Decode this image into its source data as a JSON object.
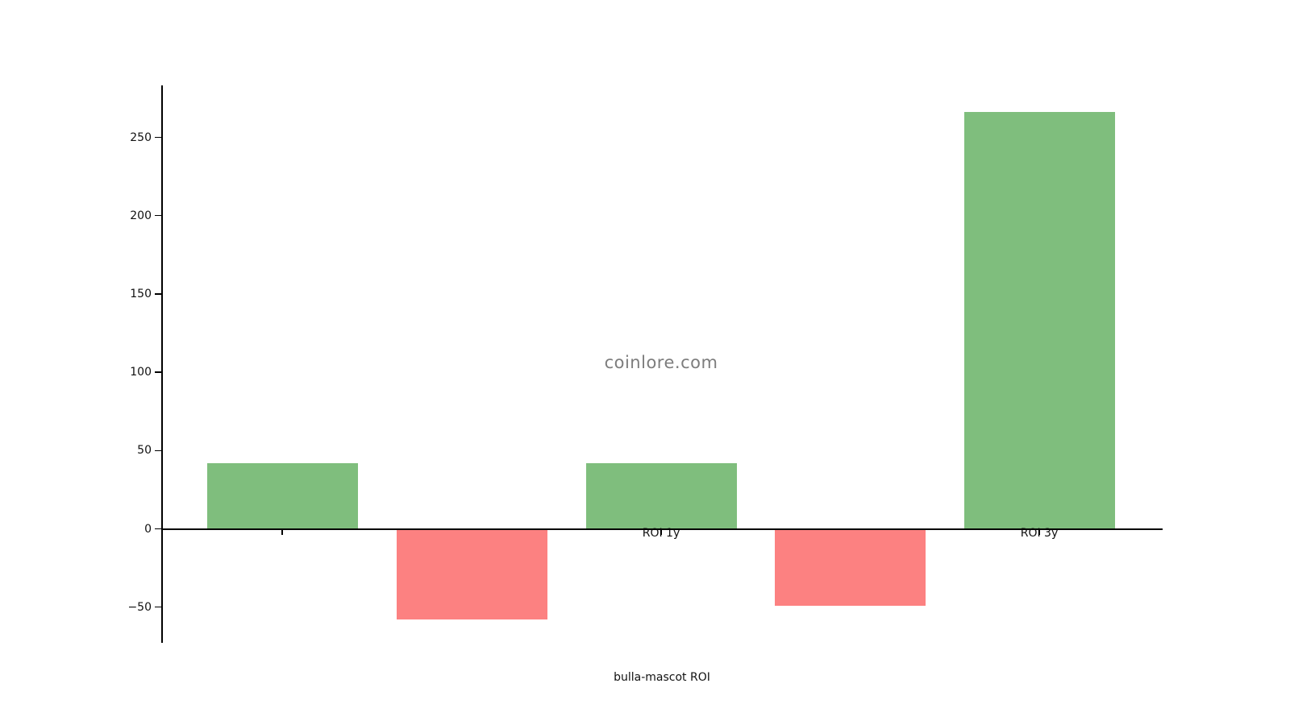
{
  "watermark": {
    "text": "coinlore.com",
    "color": "#7d7d7d"
  },
  "chart_data": {
    "type": "bar",
    "title": "bulla-mascot ROI",
    "categories": [
      "",
      "",
      "ROI 1y",
      "",
      "ROI 3y"
    ],
    "values": [
      42,
      -58,
      42,
      -49,
      266
    ],
    "bar_colors": {
      "positive": "#7fbe7d",
      "negative": "#fc8181"
    },
    "xlabel": "",
    "ylabel": "",
    "y_ticks": [
      -50,
      0,
      50,
      100,
      150,
      200,
      250
    ],
    "ylim": [
      -74,
      283
    ],
    "x_tick_bar_indices": [
      0,
      2,
      4
    ],
    "x_tick_labels": [
      "",
      "ROI 1y",
      "ROI 3y"
    ],
    "grid": false,
    "legend_position": "none",
    "axis_color": "#000000",
    "tick_label_color": "#111111"
  }
}
